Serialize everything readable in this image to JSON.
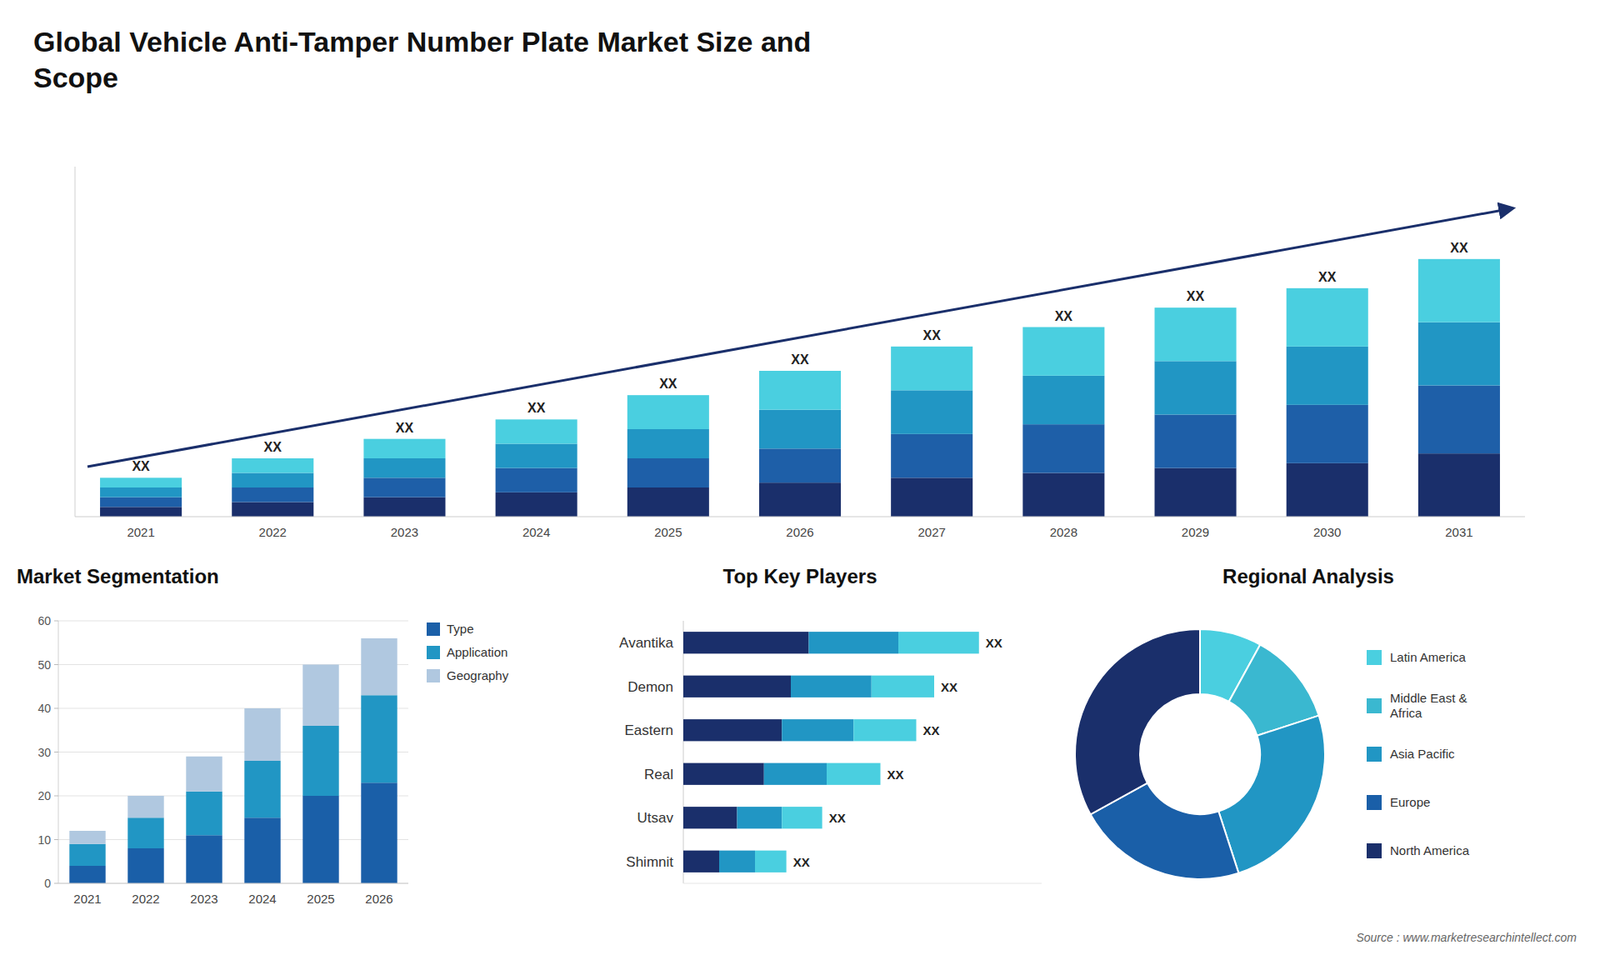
{
  "chart_data": [
    {
      "type": "bar",
      "title": "Global Vehicle Anti-Tamper Number Plate Market Size and\nScope",
      "stacked": true,
      "categories": [
        "2021",
        "2022",
        "2023",
        "2024",
        "2025",
        "2026",
        "2027",
        "2028",
        "2029",
        "2030",
        "2031"
      ],
      "series": [
        {
          "color": "#1a2f6b",
          "values": [
            2,
            3,
            4,
            5,
            6,
            7,
            8,
            9,
            10,
            11,
            13
          ]
        },
        {
          "color": "#1e5fa8",
          "values": [
            2,
            3,
            4,
            5,
            6,
            7,
            9,
            10,
            11,
            12,
            14
          ]
        },
        {
          "color": "#2196c4",
          "values": [
            2,
            3,
            4,
            5,
            6,
            8,
            9,
            10,
            11,
            12,
            13
          ]
        },
        {
          "color": "#4acfe0",
          "values": [
            2,
            3,
            4,
            5,
            7,
            8,
            9,
            10,
            11,
            12,
            13
          ]
        }
      ],
      "ylim": [
        0,
        72
      ],
      "tick_labels": "x",
      "annotations": [
        "XX",
        "XX",
        "XX",
        "XX",
        "XX",
        "XX",
        "XX",
        "XX",
        "XX",
        "XX",
        "XX"
      ]
    },
    {
      "type": "bar",
      "title": "Market Segmentation",
      "stacked": true,
      "categories": [
        "2021",
        "2022",
        "2023",
        "2024",
        "2025",
        "2026"
      ],
      "series": [
        {
          "name": "Type",
          "color": "#1a5fa8",
          "values": [
            4,
            8,
            11,
            15,
            20,
            23
          ]
        },
        {
          "name": "Application",
          "color": "#2196c4",
          "values": [
            5,
            7,
            10,
            13,
            16,
            20
          ]
        },
        {
          "name": "Geography",
          "color": "#b0c8e0",
          "values": [
            3,
            5,
            8,
            12,
            14,
            13
          ]
        }
      ],
      "ylim": [
        0,
        60
      ],
      "yticks": [
        0,
        10,
        20,
        30,
        40,
        50,
        60
      ],
      "grid": true,
      "legend": "right"
    },
    {
      "type": "bar",
      "title": "Top Key Players",
      "orientation": "horizontal",
      "stacked": true,
      "categories": [
        "Avantika",
        "Demon",
        "Eastern",
        "Real",
        "Utsav",
        "Shimnit"
      ],
      "series": [
        {
          "color": "#1a2f6b",
          "values": [
            28,
            24,
            22,
            18,
            12,
            8
          ]
        },
        {
          "color": "#2196c4",
          "values": [
            20,
            18,
            16,
            14,
            10,
            8
          ]
        },
        {
          "color": "#4acfe0",
          "values": [
            18,
            14,
            14,
            12,
            9,
            7
          ]
        }
      ],
      "xlim": [
        0,
        80
      ],
      "tick_labels": "y",
      "annotations": [
        "XX",
        "XX",
        "XX",
        "XX",
        "XX",
        "XX"
      ]
    },
    {
      "type": "donut",
      "title": "Regional Analysis",
      "categories": [
        "Latin America",
        "Middle East &\nAfrica",
        "Asia Pacific",
        "Europe",
        "North America"
      ],
      "values": [
        8,
        12,
        25,
        22,
        33
      ],
      "colors": [
        "#4acfe0",
        "#3ab8d0",
        "#2196c4",
        "#1a5fa8",
        "#1a2f6b"
      ],
      "legend": "right",
      "annotations": [
        "Source : www.marketresearchintellect.com"
      ]
    }
  ]
}
